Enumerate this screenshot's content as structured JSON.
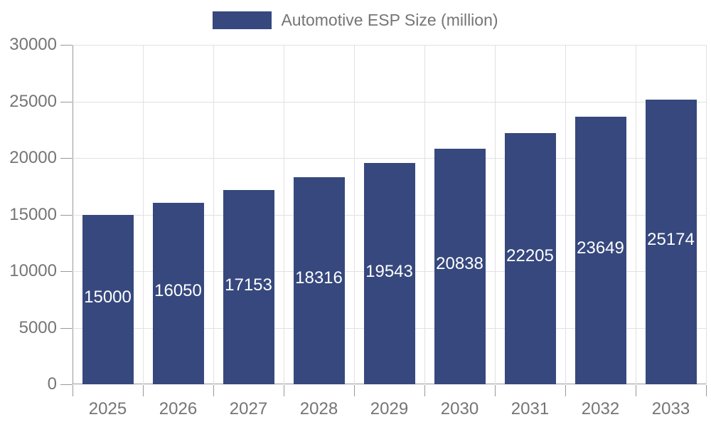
{
  "chart_data": {
    "type": "bar",
    "title": "",
    "legend": {
      "label": "Automotive ESP Size (million)",
      "position": "top"
    },
    "categories": [
      "2025",
      "2026",
      "2027",
      "2028",
      "2029",
      "2030",
      "2031",
      "2032",
      "2033"
    ],
    "series": [
      {
        "name": "Automotive ESP Size (million)",
        "values": [
          15000,
          16050,
          17153,
          18316,
          19543,
          20838,
          22205,
          23649,
          25174
        ]
      }
    ],
    "value_labels": [
      "15000",
      "16050",
      "17153",
      "18316",
      "19543",
      "20838",
      "22205",
      "23649",
      "25174"
    ],
    "xlabel": "",
    "ylabel": "",
    "ylim": [
      0,
      30000
    ],
    "yticks": [
      0,
      5000,
      10000,
      15000,
      20000,
      25000,
      30000
    ],
    "grid": true,
    "colors": {
      "bar": "#36487D",
      "grid": "#e1e1e6",
      "axis": "#999999",
      "text": "#757575",
      "value_label": "#ffffff"
    }
  }
}
